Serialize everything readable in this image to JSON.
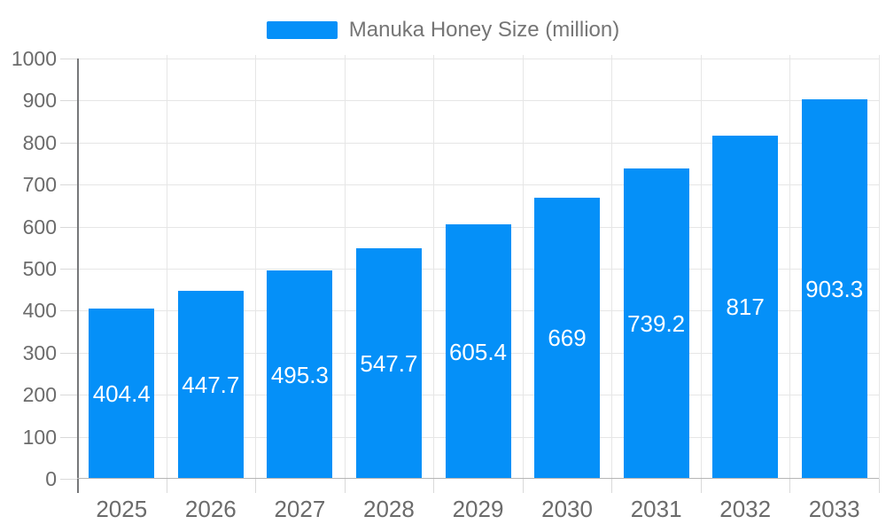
{
  "chart_data": {
    "type": "bar",
    "title": "",
    "legend_position": "top",
    "grid": "both",
    "categories": [
      "2025",
      "2026",
      "2027",
      "2028",
      "2029",
      "2030",
      "2031",
      "2032",
      "2033"
    ],
    "series": [
      {
        "name": "Manuka Honey Size (million)",
        "values": [
          404.4,
          447.7,
          495.3,
          547.7,
          605.4,
          669,
          739.2,
          817,
          903.3
        ]
      }
    ],
    "bar_labels": [
      "404.4",
      "447.7",
      "495.3",
      "547.7",
      "605.4",
      "669",
      "739.2",
      "817",
      "903.3"
    ],
    "yticks": [
      0,
      100,
      200,
      300,
      400,
      500,
      600,
      700,
      800,
      900,
      1000
    ],
    "ytick_labels": [
      "0",
      "100",
      "200",
      "300",
      "400",
      "500",
      "600",
      "700",
      "800",
      "900",
      "1000"
    ],
    "ylim": [
      0,
      1000
    ],
    "xlabel": "",
    "ylabel": "",
    "colors": {
      "bar": "#0590F8",
      "grid": "#e6e6e6",
      "axis_line": "#767779",
      "zero_line": "#b5b5b5",
      "tick": "#d9d9d9",
      "axis_label_text": "#6b6b6b",
      "legend_text": "#757575",
      "value_label_text": "#ffffff"
    }
  }
}
